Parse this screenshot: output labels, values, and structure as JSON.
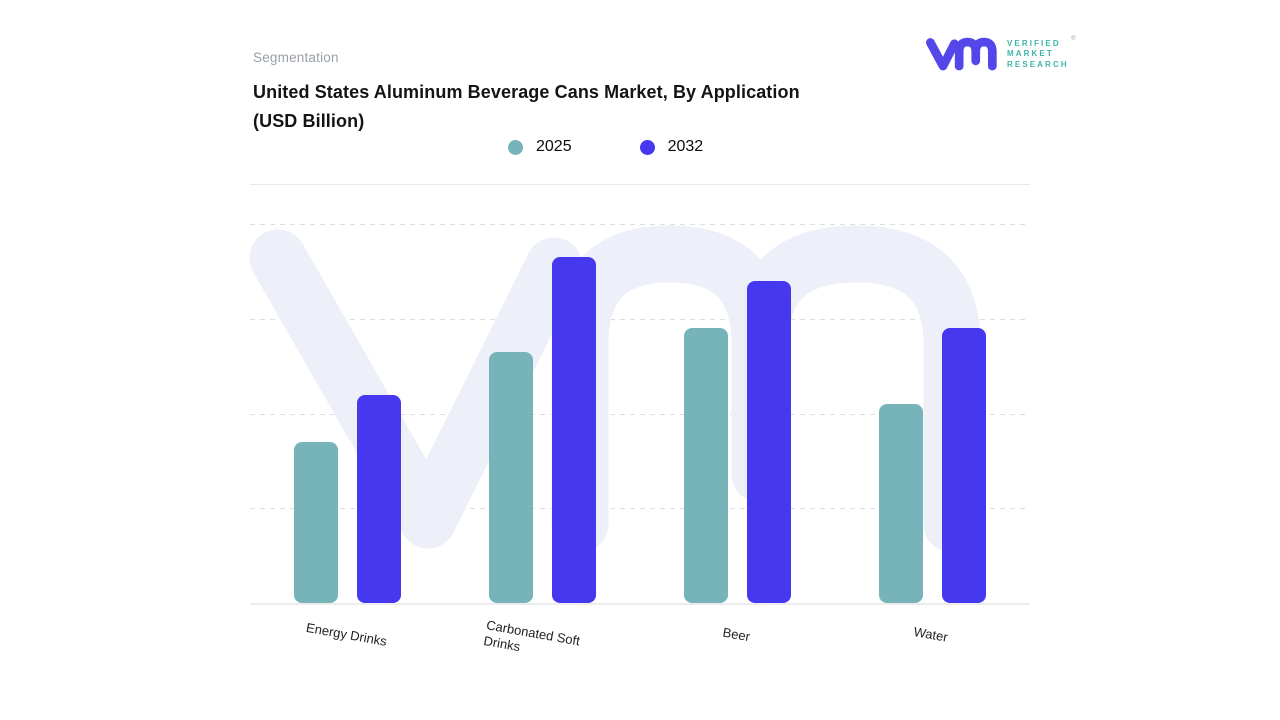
{
  "header": {
    "eyebrow": "Segmentation",
    "title_line1": "United States Aluminum Beverage Cans Market, By Application",
    "title_line2": "(USD Billion)"
  },
  "brand": {
    "name": "Verified Market Research",
    "word_lines": [
      "VERIFIED",
      "MARKET",
      "RESEARCH"
    ],
    "registered_mark": "®",
    "mark_color": "#5447e9",
    "text_color": "#3eb5ac"
  },
  "watermark": {
    "description": "large vm monogram behind plot",
    "color": "#eef0f9"
  },
  "chart_data": {
    "type": "bar",
    "title": "United States Aluminum Beverage Cans Market, By Application (USD Billion)",
    "units": "USD Billion",
    "categories": [
      "Energy Drinks",
      "Carbonated Soft Drinks",
      "Beer",
      "Water"
    ],
    "series": [
      {
        "name": "2025",
        "color": "#76b4b9",
        "values": [
          1.7,
          2.65,
          2.9,
          2.1
        ]
      },
      {
        "name": "2032",
        "color": "#4638ee",
        "values": [
          2.2,
          3.65,
          3.4,
          2.9
        ]
      }
    ],
    "ylim": [
      0,
      4
    ],
    "gridline_values": [
      1,
      2,
      3,
      4
    ],
    "grid": "horizontal-dashed",
    "legend_position": "top-center",
    "xlabel": "",
    "ylabel": "",
    "y_axis_labels_shown": false
  }
}
